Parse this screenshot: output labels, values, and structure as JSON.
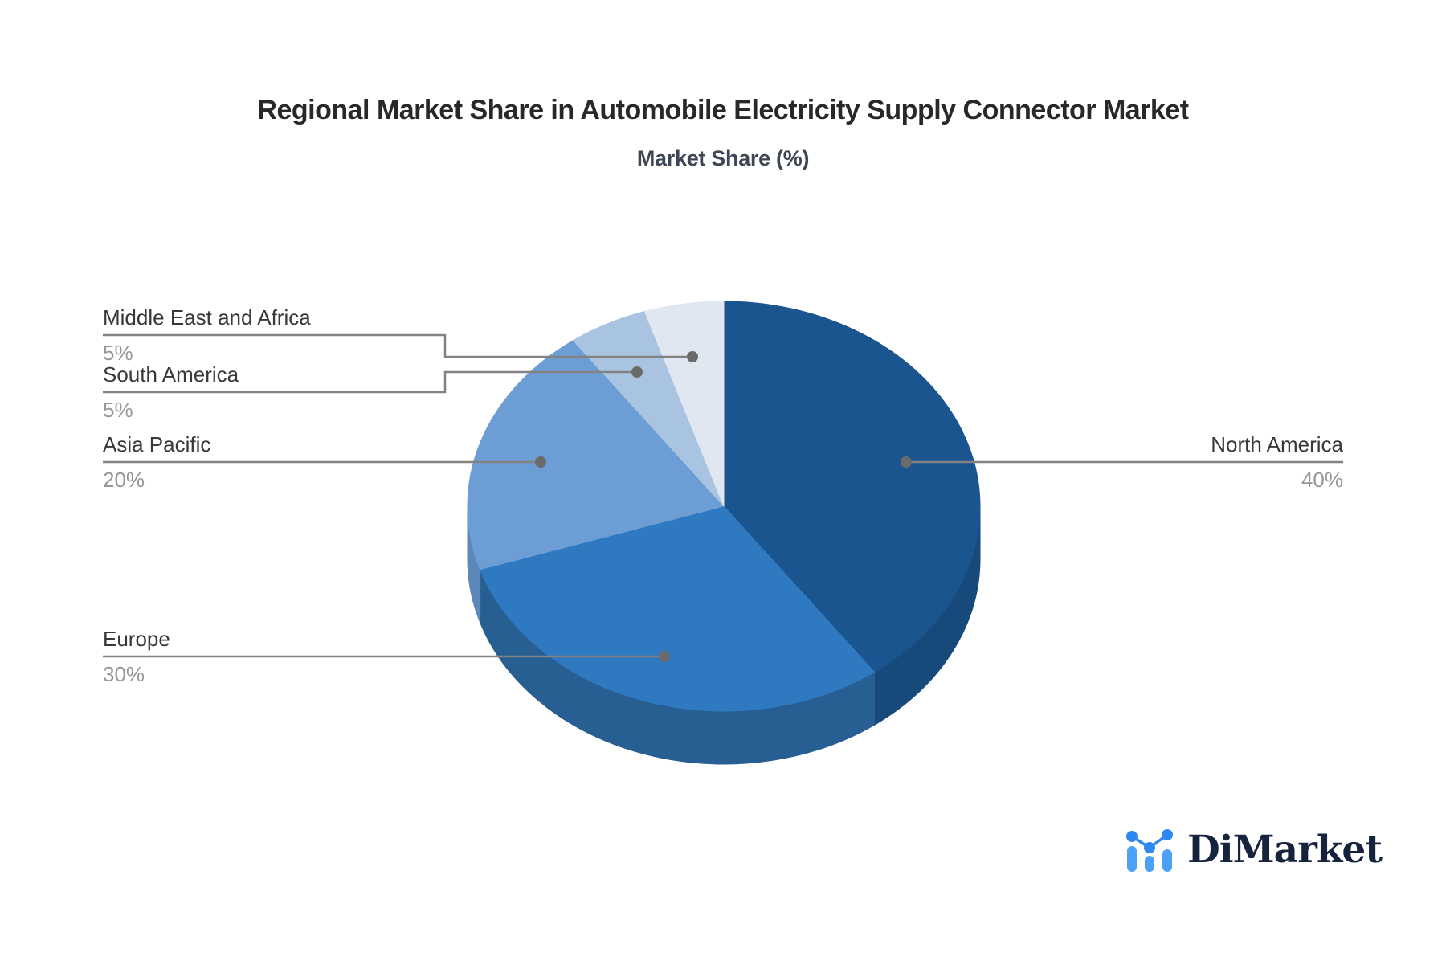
{
  "page": {
    "background": "#ffffff"
  },
  "header": {
    "title": "Regional Market Share in Automobile Electricity Supply Connector Market",
    "subtitle": "Market Share (%)"
  },
  "brand": {
    "name": "DiMarket",
    "icon": "bar-chart-with-trend-icon",
    "text_color": "#16233c",
    "icon_color": "#3e97f3"
  },
  "chart_data": {
    "type": "pie",
    "title": "Regional Market Share in Automobile Electricity Supply Connector Market",
    "subtitle": "Market Share (%)",
    "unit": "%",
    "start_angle_deg": 0,
    "direction": "clockwise",
    "effect_3d": true,
    "legend_position": "none",
    "label_style": "leader-lines-to-page-edges",
    "slices": [
      {
        "label": "North America",
        "value": 40,
        "value_label": "40%",
        "color": "#1a5590",
        "side_color": "#174a7a"
      },
      {
        "label": "Europe",
        "value": 30,
        "value_label": "30%",
        "color": "#2e79bf",
        "side_color": "#275f93"
      },
      {
        "label": "Asia Pacific",
        "value": 20,
        "value_label": "20%",
        "color": "#6c9dd4",
        "side_color": "#5b88b8"
      },
      {
        "label": "South America",
        "value": 5,
        "value_label": "5%",
        "color": "#a8c4e1",
        "side_color": "#93afcd"
      },
      {
        "label": "Middle East and Africa",
        "value": 5,
        "value_label": "5%",
        "color": "#e1e7f1",
        "side_color": "#c8d1df"
      }
    ],
    "leader_line_color": "#828282",
    "leader_dot_color": "#6b6b6b",
    "label_text_color": "#383838",
    "value_text_color": "#979797"
  }
}
